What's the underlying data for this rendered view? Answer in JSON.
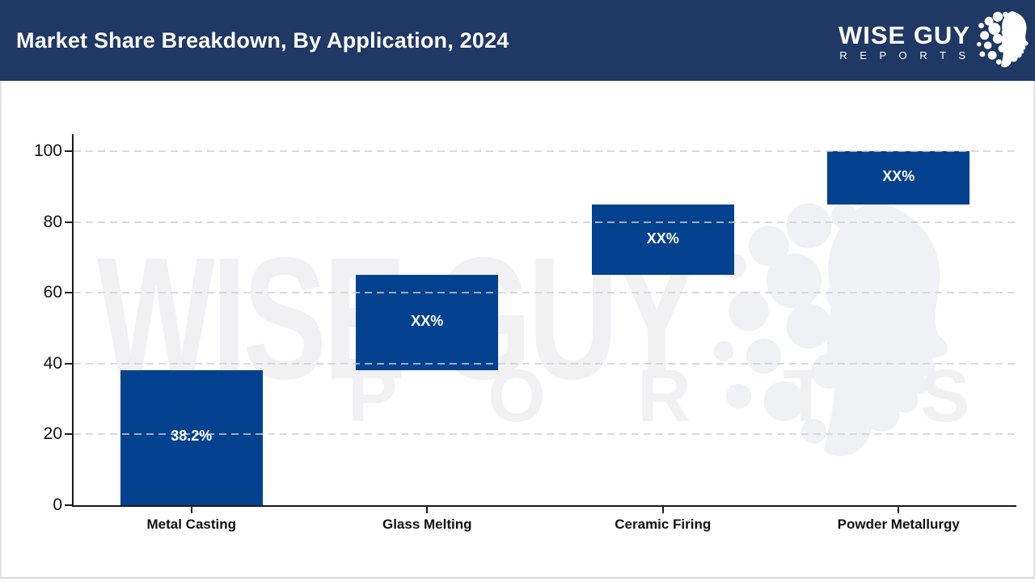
{
  "header": {
    "title": "Market Share Breakdown, By Application, 2024",
    "logo": {
      "name": "WISE GUY",
      "reports": "R E P O R T S"
    }
  },
  "colors": {
    "header_bg": "#1f3864",
    "bar": "#04418f",
    "bar_label": "#ffffff",
    "axis": "#1a1a1a",
    "grid": "#cfcfcf",
    "watermark": "#f1f1f4"
  },
  "chart_data": {
    "type": "bar",
    "subtype": "floating-waterfall",
    "title": "Market Share Breakdown, By Application, 2024",
    "categories": [
      "Metal Casting",
      "Glass Melting",
      "Ceramic Firing",
      "Powder Metallurgy"
    ],
    "segments": [
      {
        "category": "Metal Casting",
        "start": 0,
        "end": 38.2,
        "label": "38.2%"
      },
      {
        "category": "Glass Melting",
        "start": 38.2,
        "end": 65,
        "label": "XX%"
      },
      {
        "category": "Ceramic Firing",
        "start": 65,
        "end": 85,
        "label": "XX%"
      },
      {
        "category": "Powder Metallurgy",
        "start": 85,
        "end": 100,
        "label": "XX%"
      }
    ],
    "ylim": [
      0,
      100
    ],
    "yticks": [
      0,
      20,
      40,
      60,
      80,
      100
    ],
    "xlabel": "",
    "ylabel": "",
    "legend": "none",
    "grid": {
      "axis": "y",
      "style": "dashed",
      "drawn_above_bars": true
    },
    "bar_color": "#04418f",
    "watermark": {
      "line1": "WISE GUY",
      "line2": "P O R T S"
    }
  }
}
